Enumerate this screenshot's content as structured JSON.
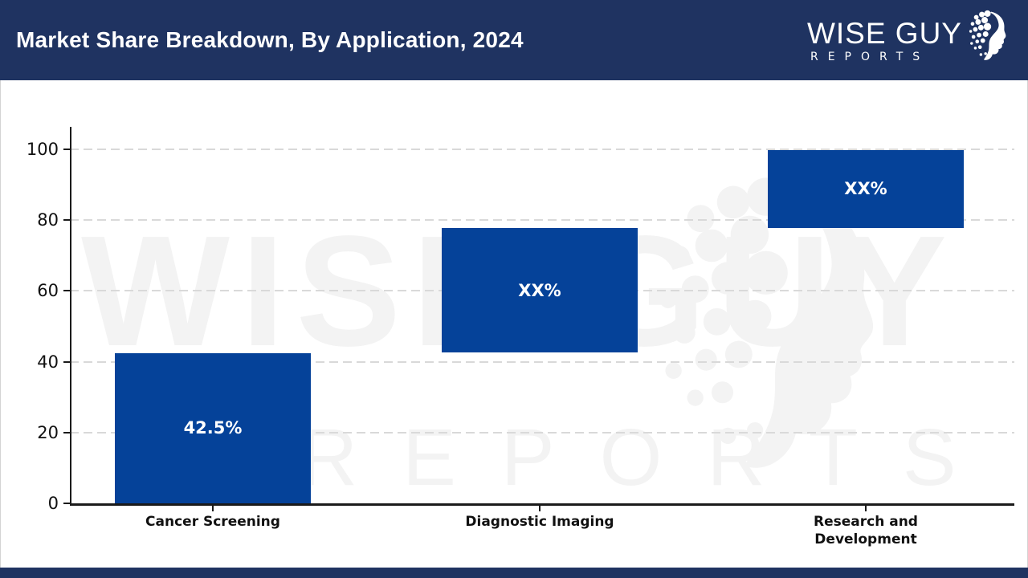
{
  "header": {
    "title": "Market Share Breakdown, By Application, 2024",
    "logo_line1": "WISE GUY",
    "logo_line2": "REPORTS"
  },
  "watermark": {
    "line1": "WISE GUY",
    "line2": "REPORTS"
  },
  "colors": {
    "header_bg": "#1f3361",
    "footer_bg": "#1f3361",
    "bar": "#054299",
    "bar_label": "#ffffff",
    "gridline": "#d9d9d9",
    "axis": "#1a1a1a",
    "watermark": "#f3f3f3"
  },
  "chart_data": {
    "type": "bar",
    "subtype": "waterfall",
    "title": "Market Share Breakdown, By Application, 2024",
    "categories": [
      "Cancer Screening",
      "Diagnostic Imaging",
      "Research and Development"
    ],
    "series": [
      {
        "name": "Market share (%)",
        "segments": [
          {
            "category": "Cancer Screening",
            "start": 0,
            "end": 42.5,
            "label": "42.5%"
          },
          {
            "category": "Diagnostic Imaging",
            "start": 42.5,
            "end": 77.7,
            "label": "XX%"
          },
          {
            "category": "Research and Development",
            "start": 77.7,
            "end": 99.8,
            "label": "XX%"
          }
        ]
      }
    ],
    "bar_labels": [
      "42.5%",
      "XX%",
      "XX%"
    ],
    "yticks": [
      0,
      20,
      40,
      60,
      80,
      100
    ],
    "ylim": [
      0,
      106
    ],
    "xlabel": "",
    "ylabel": "",
    "grid": "horizontal-dashed",
    "legend": "none"
  }
}
